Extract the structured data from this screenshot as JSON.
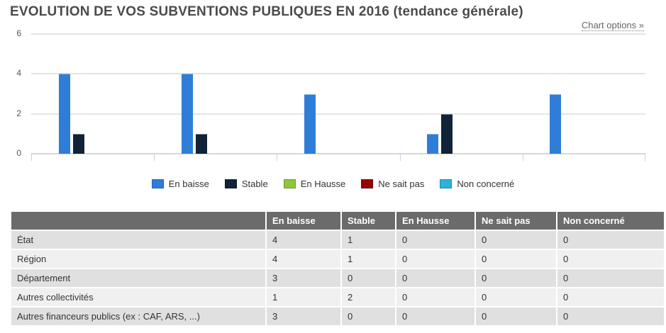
{
  "page": {
    "title": "EVOLUTION DE VOS SUBVENTIONS PUBLIQUES EN 2016 (tendance générale)",
    "chart_options_label": "Chart options »"
  },
  "colors": {
    "en_baisse": "#2e7ed8",
    "stable": "#102337",
    "en_hausse": "#8ec63f",
    "ne_sait_pas": "#940404",
    "non_concerne": "#29b4d8",
    "table_header_bg": "#6b6b6b",
    "row_dark": "#e0e0e0",
    "row_light": "#f0f0f0",
    "gridline": "#e4e4e4"
  },
  "chart_data": {
    "type": "bar",
    "title": "EVOLUTION DE VOS SUBVENTIONS PUBLIQUES EN 2016 (tendance générale)",
    "categories": [
      "État",
      "Région",
      "Département",
      "Autres collectivités",
      "Autres financeurs publics (ex : CAF, ARS, ...)"
    ],
    "series": [
      {
        "name": "En baisse",
        "color": "#2e7ed8",
        "values": [
          4,
          4,
          3,
          1,
          3
        ]
      },
      {
        "name": "Stable",
        "color": "#102337",
        "values": [
          1,
          1,
          0,
          2,
          0
        ]
      },
      {
        "name": "En Hausse",
        "color": "#8ec63f",
        "values": [
          0,
          0,
          0,
          0,
          0
        ]
      },
      {
        "name": "Ne sait pas",
        "color": "#940404",
        "values": [
          0,
          0,
          0,
          0,
          0
        ]
      },
      {
        "name": "Non concerné",
        "color": "#29b4d8",
        "values": [
          0,
          0,
          0,
          0,
          0
        ]
      }
    ],
    "xlabel": "",
    "ylabel": "",
    "ylim": [
      0,
      6
    ],
    "yticks": [
      0,
      2,
      4,
      6
    ],
    "grid": true,
    "legend_position": "bottom",
    "x_category_labels_shown": false
  },
  "table": {
    "columns": [
      "",
      "En baisse",
      "Stable",
      "En Hausse",
      "Ne sait pas",
      "Non concerné"
    ],
    "rows": [
      {
        "label": "État",
        "values": [
          "4",
          "1",
          "0",
          "0",
          "0"
        ]
      },
      {
        "label": "Région",
        "values": [
          "4",
          "1",
          "0",
          "0",
          "0"
        ]
      },
      {
        "label": "Département",
        "values": [
          "3",
          "0",
          "0",
          "0",
          "0"
        ]
      },
      {
        "label": "Autres collectivités",
        "values": [
          "1",
          "2",
          "0",
          "0",
          "0"
        ]
      },
      {
        "label": "Autres financeurs publics (ex : CAF, ARS, ...)",
        "values": [
          "3",
          "0",
          "0",
          "0",
          "0"
        ]
      }
    ]
  }
}
